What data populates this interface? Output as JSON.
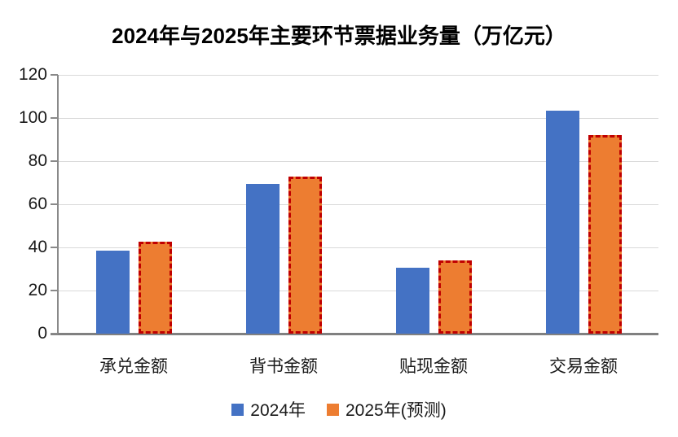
{
  "chart_data": {
    "type": "bar",
    "title": "2024年与2025年主要环节票据业务量（万亿元）",
    "categories": [
      "承兑金额",
      "背书金额",
      "贴现金额",
      "交易金额"
    ],
    "series": [
      {
        "name": "2024年",
        "color": "#4472C4",
        "style": "solid",
        "values": [
          38.5,
          69.5,
          30.5,
          103.5
        ]
      },
      {
        "name": "2025年(预测)",
        "color": "#ED7D31",
        "border_color": "#C00000",
        "style": "dashed",
        "values": [
          42.5,
          73,
          34,
          92
        ]
      }
    ],
    "xlabel": "",
    "ylabel": "",
    "ylim": [
      0,
      120
    ],
    "yticks": [
      0,
      20,
      40,
      60,
      80,
      100,
      120
    ],
    "grid": true,
    "legend_position": "bottom"
  },
  "colors": {
    "bar_2024": "#4472C4",
    "bar_2025": "#ED7D31",
    "bar_2025_border": "#C00000",
    "gridline": "#d9d9d9",
    "axis": "#808080"
  }
}
